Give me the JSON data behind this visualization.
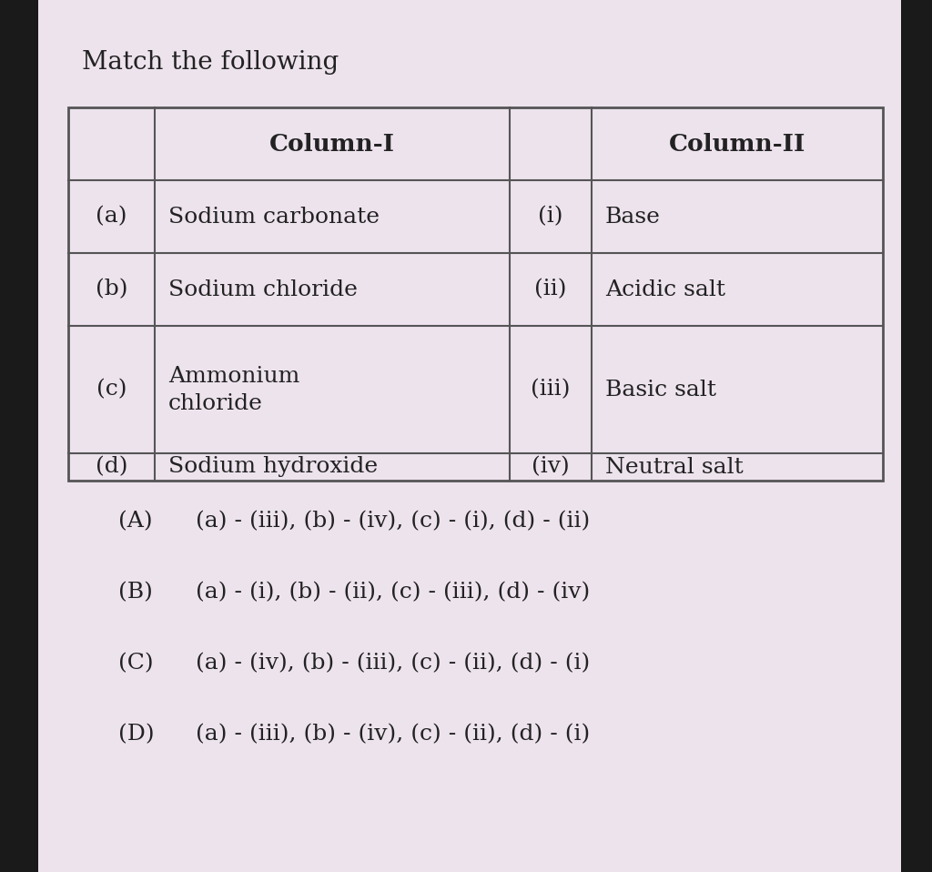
{
  "title": "Match the following",
  "bg_color": "#e8dce8",
  "page_color": "#ede3ed",
  "left_bar_color": "#1a1a1a",
  "table_bg": "#ede3ed",
  "border_color": "#555555",
  "text_color": "#222222",
  "col1_header": "Column-I",
  "col2_header": "Column-II",
  "col1_items": [
    {
      "label": "(a)",
      "text": "Sodium carbonate"
    },
    {
      "label": "(b)",
      "text": "Sodium chloride"
    },
    {
      "label": "(c)",
      "text": "Ammonium\nchloride"
    },
    {
      "label": "(d)",
      "text": "Sodium hydroxide"
    }
  ],
  "col2_items": [
    {
      "label": "(i)",
      "text": "Base"
    },
    {
      "label": "(ii)",
      "text": "Acidic salt"
    },
    {
      "label": "(iii)",
      "text": "Basic salt"
    },
    {
      "label": "(iv)",
      "text": "Neutral salt"
    }
  ],
  "options": [
    {
      "label": "(A)",
      "text": "(a) - (iii), (b) - (iv), (c) - (i), (d) - (ii)"
    },
    {
      "label": "(B)",
      "text": "(a) - (i), (b) - (ii), (c) - (iii), (d) - (iv)"
    },
    {
      "label": "(C)",
      "text": "(a) - (iv), (b) - (iii), (c) - (ii), (d) - (i)"
    },
    {
      "label": "(D)",
      "text": "(a) - (iii), (b) - (iv), (c) - (ii), (d) - (i)"
    }
  ],
  "title_fontsize": 20,
  "header_fontsize": 19,
  "cell_fontsize": 18,
  "option_fontsize": 18
}
